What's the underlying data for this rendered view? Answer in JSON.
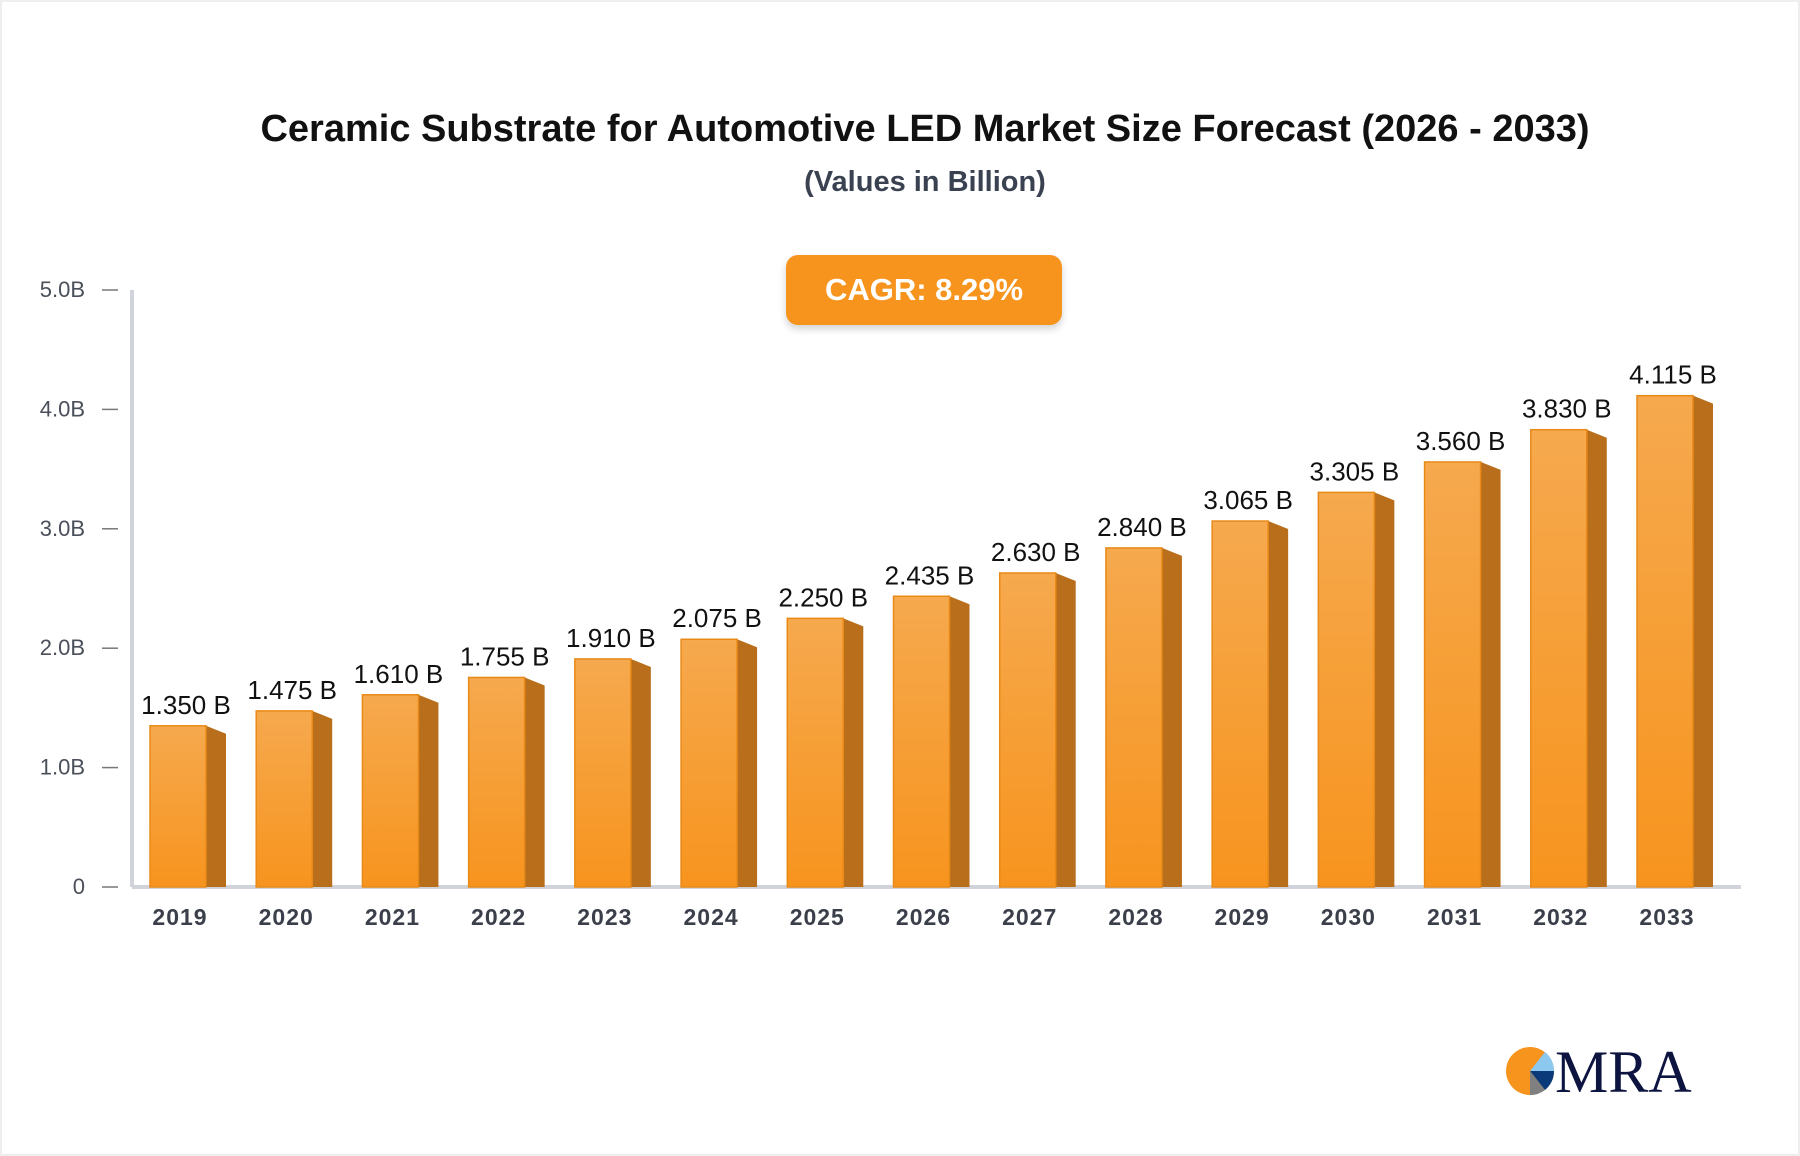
{
  "chart_data": {
    "type": "bar",
    "title": "Ceramic Substrate for Automotive LED Market Size Forecast (2026 - 2033)",
    "subtitle": "(Values in Billion)",
    "annotation": "CAGR: 8.29%",
    "categories": [
      "2019",
      "2020",
      "2021",
      "2022",
      "2023",
      "2024",
      "2025",
      "2026",
      "2027",
      "2028",
      "2029",
      "2030",
      "2031",
      "2032",
      "2033"
    ],
    "values": [
      1.35,
      1.475,
      1.61,
      1.755,
      1.91,
      2.075,
      2.25,
      2.435,
      2.63,
      2.84,
      3.065,
      3.305,
      3.56,
      3.83,
      4.115
    ],
    "data_labels": [
      "1.350 B",
      "1.475 B",
      "1.610 B",
      "1.755 B",
      "1.910 B",
      "2.075 B",
      "2.250 B",
      "2.435 B",
      "2.630 B",
      "2.840 B",
      "3.065 B",
      "3.305 B",
      "3.560 B",
      "3.830 B",
      "4.115 B"
    ],
    "yticks": [
      0,
      1,
      2,
      3,
      4,
      5
    ],
    "ytick_labels": [
      "0",
      "1.0B",
      "2.0B",
      "3.0B",
      "4.0B",
      "5.0B"
    ],
    "ylim": [
      0,
      5
    ],
    "xlabel": "",
    "ylabel": "",
    "grid": false,
    "colors": {
      "bar_front": "#f7941e",
      "bar_side": "#b86e1a",
      "axis": "#d0d3da"
    }
  },
  "logo": {
    "text": "MRA"
  }
}
